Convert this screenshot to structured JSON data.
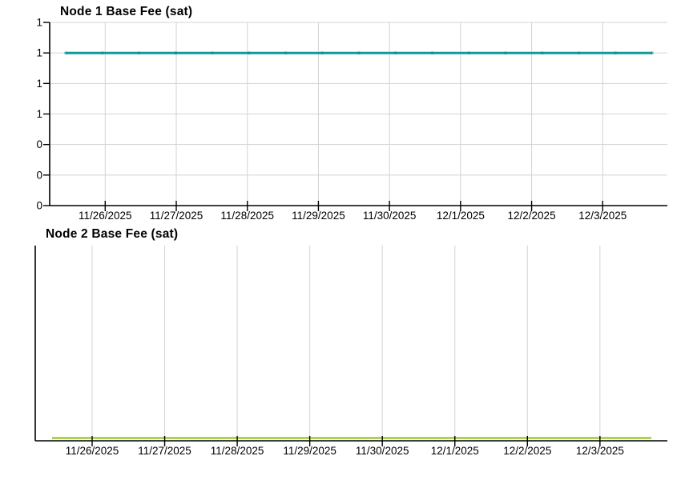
{
  "colors": {
    "background": "#ffffff",
    "axis": "#000000",
    "grid": "#d3d3d3",
    "node1_line": "#12999a",
    "node1_marker": "#0d8581",
    "node2_line": "#9acd32",
    "text": "#000000"
  },
  "chart_data": [
    {
      "type": "line",
      "title": "Node 1 Base Fee (sat)",
      "xlabel": "",
      "ylabel": "",
      "x_tick_labels": [
        "11/26/2025",
        "11/27/2025",
        "11/28/2025",
        "11/29/2025",
        "11/30/2025",
        "12/1/2025",
        "12/2/2025",
        "12/3/2025"
      ],
      "y_tick_labels": [
        "1",
        "1",
        "1",
        "1",
        "0",
        "0",
        "0"
      ],
      "ylim": [
        0,
        1.2
      ],
      "grid": "both",
      "legend": "none",
      "series": [
        {
          "name": "Node 1 base fee",
          "color": "#12999a",
          "constant_value": 1,
          "x_start": "11/25/2025",
          "x_end": "12/3/2025"
        }
      ]
    },
    {
      "type": "line",
      "title": "Node 2 Base Fee (sat)",
      "xlabel": "",
      "ylabel": "",
      "x_tick_labels": [
        "11/26/2025",
        "11/27/2025",
        "11/28/2025",
        "11/29/2025",
        "11/30/2025",
        "12/1/2025",
        "12/2/2025",
        "12/3/2025"
      ],
      "y_tick_labels": [],
      "grid": "vertical-only",
      "legend": "none",
      "series": [
        {
          "name": "Node 2 base fee",
          "color": "#9acd32",
          "constant_value": 0,
          "x_start": "11/25/2025",
          "x_end": "12/3/2025"
        }
      ]
    }
  ]
}
